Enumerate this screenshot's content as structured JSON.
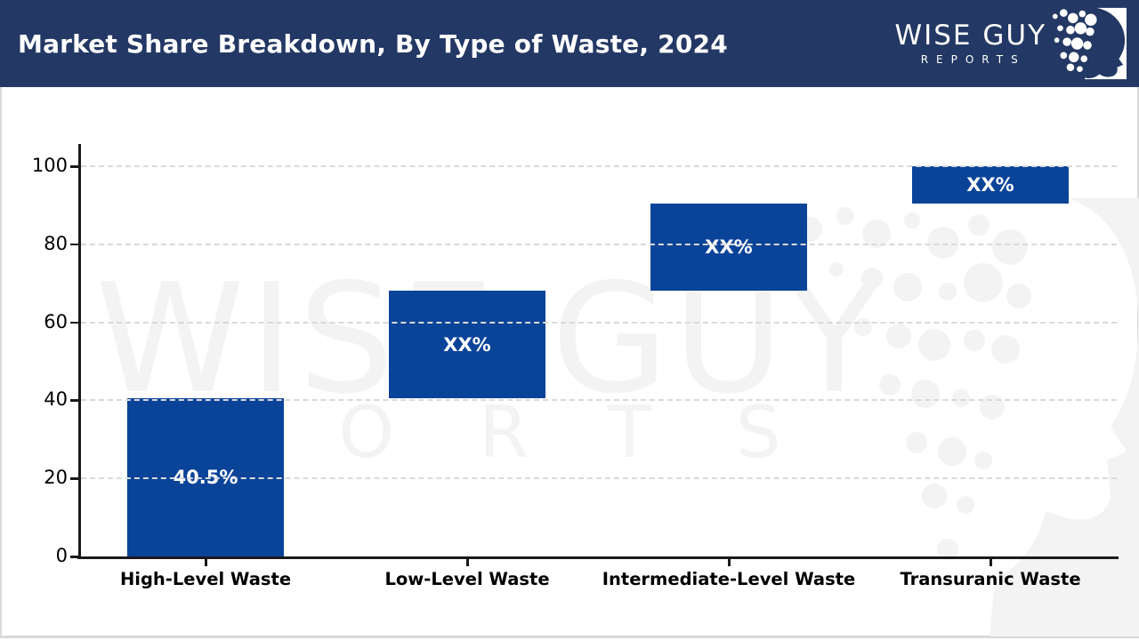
{
  "header": {
    "title": "Market Share Breakdown, By Type of Waste, 2024",
    "bg_color": "#233864",
    "logo": {
      "line1": "WISE GUY",
      "line2": "REPORTS"
    }
  },
  "watermark": {
    "line1": "WISE GUY",
    "line2": "PORTS",
    "color": "#f3f3f3"
  },
  "chart_data": {
    "type": "bar",
    "subtype": "waterfall",
    "title": "Market Share Breakdown, By Type of Waste, 2024",
    "categories": [
      "High-Level Waste",
      "Low-Level Waste",
      "Intermediate-Level Waste",
      "Transuranic Waste"
    ],
    "segments": [
      {
        "category": "High-Level Waste",
        "start": 0,
        "end": 40.5,
        "label": "40.5%"
      },
      {
        "category": "Low-Level Waste",
        "start": 40.5,
        "end": 68,
        "label": "XX%"
      },
      {
        "category": "Intermediate-Level Waste",
        "start": 68,
        "end": 90.5,
        "label": "XX%"
      },
      {
        "category": "Transuranic Waste",
        "start": 90.5,
        "end": 100,
        "label": "XX%"
      }
    ],
    "values_shown": [
      "40.5%",
      "XX%",
      "XX%",
      "XX%"
    ],
    "xlabel": "",
    "ylabel": "",
    "ylim": [
      0,
      100
    ],
    "yticks": [
      0,
      20,
      40,
      60,
      80,
      100
    ],
    "grid": "horizontal-dashed",
    "legend": "none",
    "bar_color": "#0a4499",
    "bar_label_color": "#ffffff",
    "grid_color": "#d9d9d9",
    "axis_color": "#1a1a1a"
  }
}
